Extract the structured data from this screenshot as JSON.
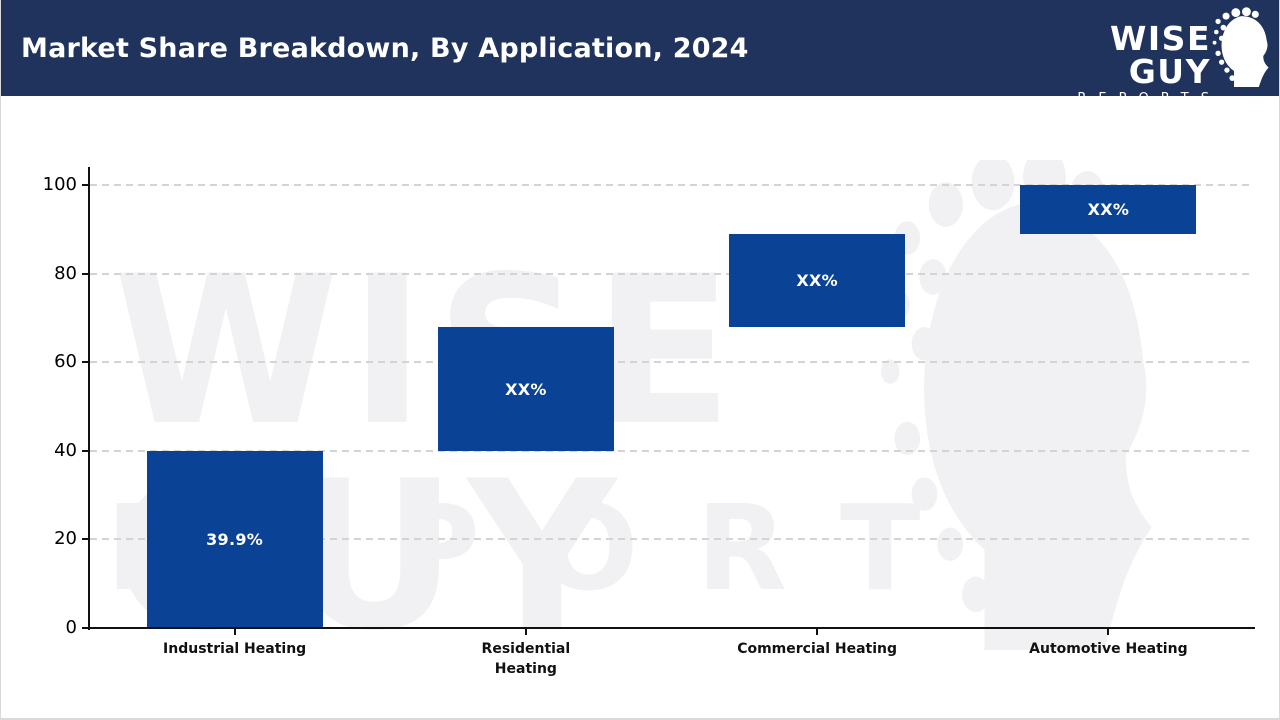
{
  "header": {
    "title": "Market Share Breakdown, By Application, 2024",
    "bg_color": "#1f335c",
    "logo": {
      "brand": "WISE GUY",
      "sub": "REPORTS"
    }
  },
  "watermark": {
    "line1": "WISE GUY",
    "line2": "REPORTS"
  },
  "chart_data": {
    "type": "bar",
    "variant": "floating-segment-breakdown",
    "title": "Market Share Breakdown, By Application, 2024",
    "categories": [
      "Industrial Heating",
      "Residential Heating",
      "Commercial Heating",
      "Automotive Heating"
    ],
    "category_label_lines": [
      [
        "Industrial Heating"
      ],
      [
        "Residential",
        "Heating"
      ],
      [
        "Commercial Heating"
      ],
      [
        "Automotive Heating"
      ]
    ],
    "segments": [
      {
        "category": "Industrial Heating",
        "start": 0,
        "end": 39.9,
        "size": 39.9,
        "label": "39.9%"
      },
      {
        "category": "Residential Heating",
        "start": 40,
        "end": 68,
        "size": 28,
        "label": "XX%"
      },
      {
        "category": "Commercial Heating",
        "start": 68,
        "end": 89,
        "size": 21,
        "label": "XX%"
      },
      {
        "category": "Automotive Heating",
        "start": 89,
        "end": 100,
        "size": 11,
        "label": "XX%"
      }
    ],
    "yticks": [
      0,
      20,
      40,
      60,
      80,
      100
    ],
    "ylim": [
      0,
      103.5
    ],
    "xlabel": "",
    "ylabel": "",
    "grid": "horizontal-dashed",
    "legend": "none",
    "bar_color": "#0a4296",
    "bar_label_color": "#ffffff",
    "axis_color": "#111111",
    "grid_color": "#d4d4d4"
  }
}
